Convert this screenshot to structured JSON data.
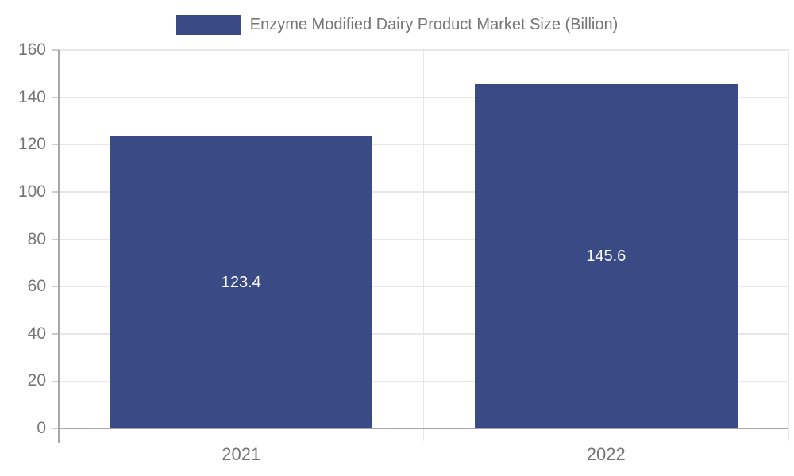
{
  "chart_data": {
    "type": "bar",
    "title": "Enzyme Modified Dairy Product Market Size (Billion)",
    "categories": [
      "2021",
      "2022"
    ],
    "series": [
      {
        "name": "Enzyme Modified Dairy Product Market Size (Billion)",
        "values": [
          123.4,
          145.6
        ]
      }
    ],
    "value_labels": [
      "123.4",
      "145.6"
    ],
    "xlabel": "",
    "ylabel": "",
    "ylim": [
      0,
      160
    ],
    "yticks": [
      0,
      20,
      40,
      60,
      80,
      100,
      120,
      140,
      160
    ],
    "grid": true,
    "legend_position": "top-center",
    "colors": {
      "bar": "#3A4A84",
      "bar_value_text": "#ffffff",
      "axis_text": "#757575",
      "legend_text": "#757575",
      "gridline": "#e7e7e7",
      "axis_line": "#a7a7a7",
      "background": "#ffffff"
    }
  }
}
